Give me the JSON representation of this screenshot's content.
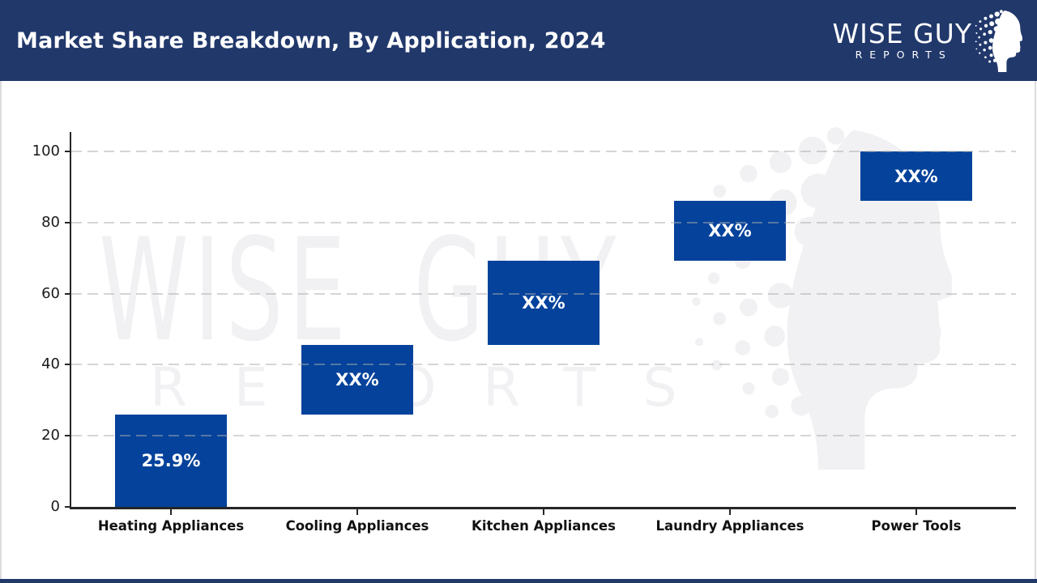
{
  "header": {
    "title": "Market Share Breakdown, By Application, 2024",
    "logo": {
      "line1": "WISE GUY",
      "line2": "REPORTS"
    }
  },
  "watermark": {
    "line1": "WISE GUY",
    "line2": "REPORTS"
  },
  "chart_data": {
    "type": "bar",
    "subtype": "waterfall",
    "title": "Market Share Breakdown, By Application, 2024",
    "categories": [
      "Heating Appliances",
      "Cooling Appliances",
      "Kitchen Appliances",
      "Laundry Appliances",
      "Power Tools"
    ],
    "segments": [
      {
        "category": "Heating Appliances",
        "start": 0,
        "end": 25.9,
        "label": "25.9%"
      },
      {
        "category": "Cooling Appliances",
        "start": 25.9,
        "end": 45.5,
        "label": "XX%"
      },
      {
        "category": "Kitchen Appliances",
        "start": 45.5,
        "end": 69.2,
        "label": "XX%"
      },
      {
        "category": "Laundry Appliances",
        "start": 69.2,
        "end": 86.1,
        "label": "XX%"
      },
      {
        "category": "Power Tools",
        "start": 86.1,
        "end": 100,
        "label": "XX%"
      }
    ],
    "ylim": [
      0,
      100
    ],
    "yticks": [
      0,
      20,
      40,
      60,
      80,
      100
    ],
    "grid": "horizontal-dashed",
    "legend": "none",
    "bar_color": "#04429b",
    "bar_label_color": "#ffffff"
  },
  "colors": {
    "header_bg": "#21386b",
    "footer_bg": "#21386b",
    "axis": "#262626",
    "watermark": "#f1f1f3",
    "bar": "#04429b"
  }
}
